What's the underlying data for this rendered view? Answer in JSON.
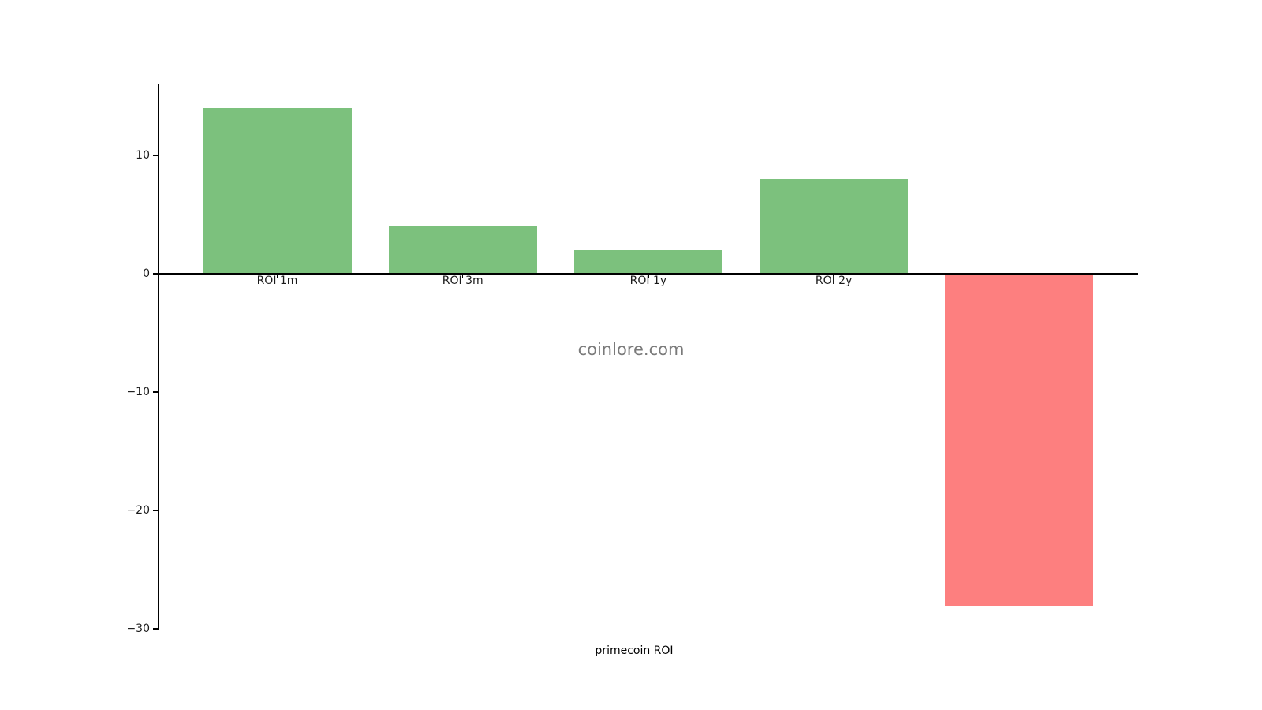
{
  "page": {
    "background": "#ffffff"
  },
  "watermark": {
    "text": "coinlore.com",
    "color": "#7a7a7a"
  },
  "chart_data": {
    "type": "bar",
    "title": "",
    "xlabel": "primecoin ROI",
    "ylabel": "",
    "categories": [
      "ROI 1m",
      "ROI 3m",
      "ROI 1y",
      "ROI 2y",
      ""
    ],
    "values": [
      14,
      4,
      2,
      8,
      -28
    ],
    "bar_colors": [
      "#7cc17d",
      "#7cc17d",
      "#7cc17d",
      "#7cc17d",
      "#fd7f7f"
    ],
    "positive_color": "#7cc17d",
    "negative_color": "#fd7f7f",
    "yticks": [
      10,
      0,
      -10,
      -20,
      -30
    ],
    "ytick_labels": [
      "10",
      "0",
      "−10",
      "−20",
      "−30"
    ],
    "ylim": [
      -30.1,
      16.1
    ],
    "xlim": [
      -0.64,
      4.64
    ],
    "bar_width": 0.8,
    "grid": false,
    "legend": null,
    "axis_color": "#000000",
    "tick_label_color": "#1a1a1a"
  }
}
